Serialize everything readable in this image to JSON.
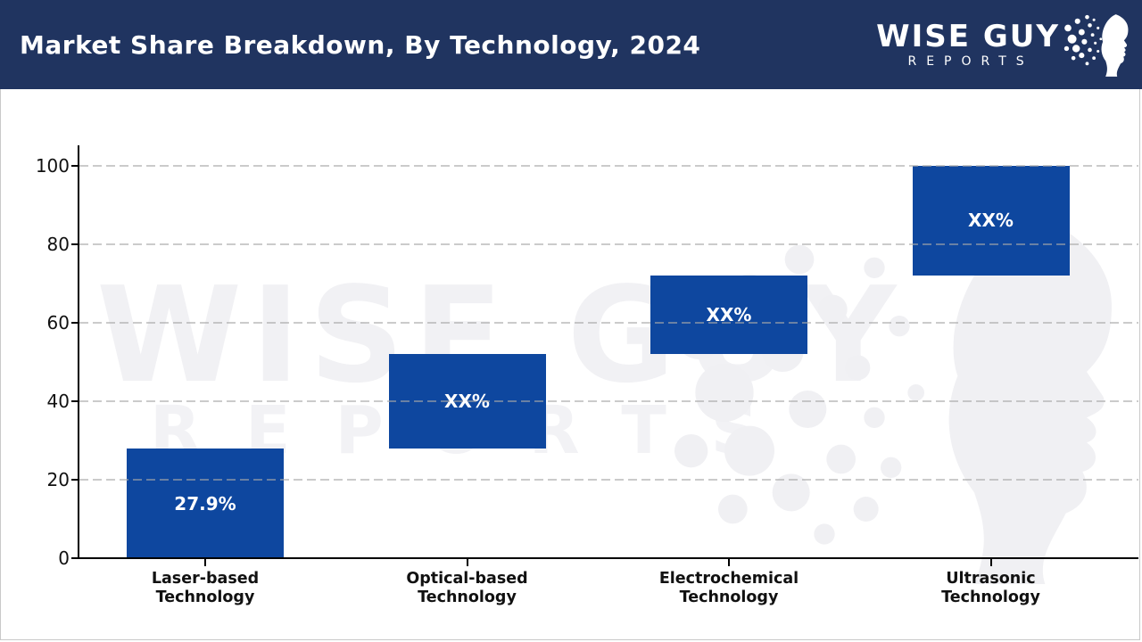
{
  "header": {
    "title": "Market Share Breakdown, By Technology, 2024",
    "logo": {
      "name_top": "WISE GUY",
      "name_bottom": "REPORTS"
    }
  },
  "watermark": {
    "text_top": "WISE GUY",
    "text_bottom": "REPORTS"
  },
  "chart_data": {
    "type": "bar",
    "subtype": "waterfall-floating-segments",
    "title": "Market Share Breakdown, By Technology, 2024",
    "categories": [
      "Laser-based Technology",
      "Optical-based Technology",
      "Electrochemical Technology",
      "Ultrasonic Technology"
    ],
    "category_lines": [
      [
        "Laser-based",
        "Technology"
      ],
      [
        "Optical-based",
        "Technology"
      ],
      [
        "Electrochemical",
        "Technology"
      ],
      [
        "Ultrasonic",
        "Technology"
      ]
    ],
    "segments": [
      {
        "category": "Laser-based Technology",
        "start": 0,
        "end": 27.9,
        "value": 27.9,
        "label": "27.9%"
      },
      {
        "category": "Optical-based Technology",
        "start": 27.9,
        "end": 52.0,
        "value": 24.1,
        "label": "XX%"
      },
      {
        "category": "Electrochemical Technology",
        "start": 52.0,
        "end": 72.1,
        "value": 20.1,
        "label": "XX%"
      },
      {
        "category": "Ultrasonic Technology",
        "start": 72.1,
        "end": 100,
        "value": 27.9,
        "label": "XX%"
      }
    ],
    "xlabel": "",
    "ylabel": "",
    "ylim": [
      0,
      100
    ],
    "yticks": [
      0,
      20,
      40,
      60,
      80,
      100
    ],
    "grid": "horizontal-dashed",
    "legend": "none",
    "colors": {
      "bar": "#0e479f",
      "bar_label": "#ffffff",
      "grid": "#c9c9c9",
      "axis": "#000000",
      "header_bg": "#203460",
      "header_text": "#ffffff",
      "watermark": "#f1f1f4"
    }
  }
}
